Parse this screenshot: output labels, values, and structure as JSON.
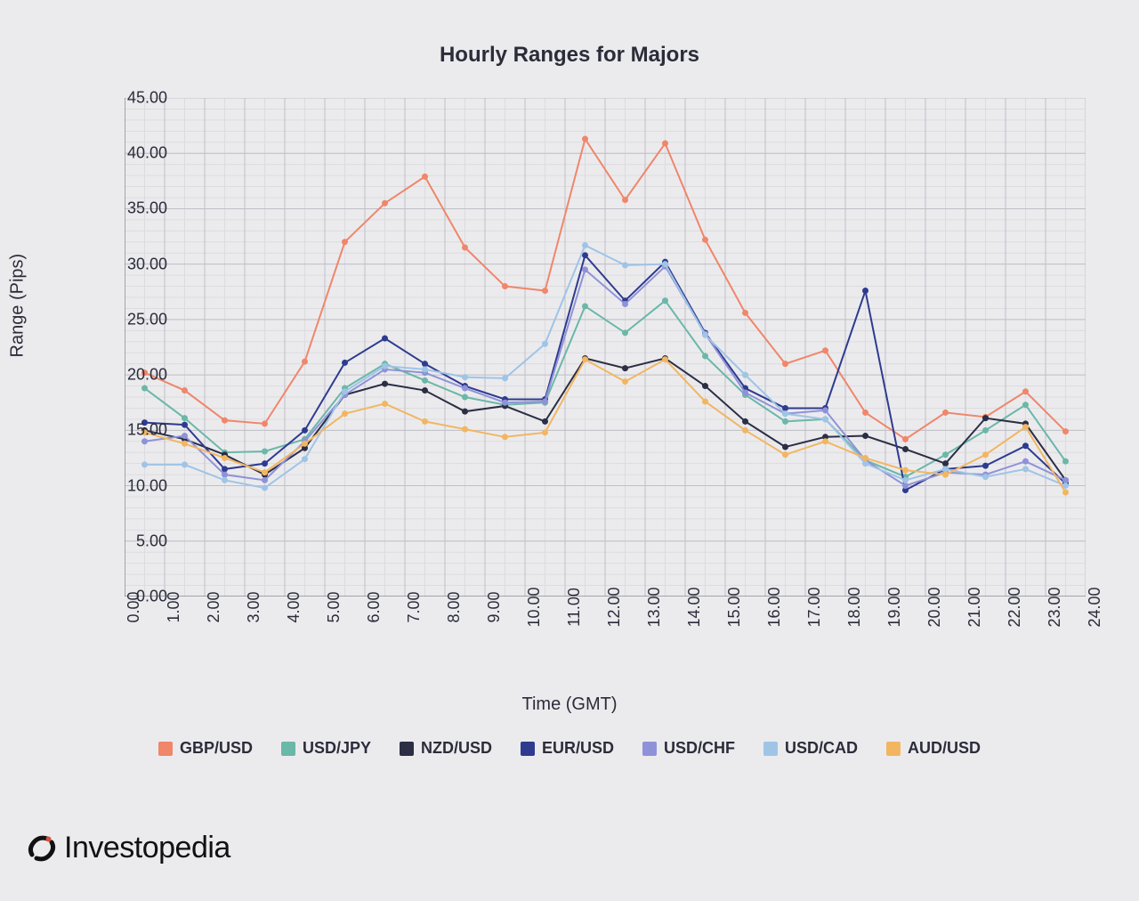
{
  "title": "Hourly Ranges for Majors",
  "x_label": "Time (GMT)",
  "y_label": "Range (Pips)",
  "brand": "Investopedia",
  "chart": {
    "type": "line",
    "background_color": "#ebebee",
    "grid_minor_color": "#dcdce0",
    "grid_major_color": "#bfbfc7",
    "axis_color": "#8a8a94",
    "marker_radius": 3.5,
    "line_width": 2,
    "xlim": [
      0,
      24
    ],
    "ylim": [
      0,
      45
    ],
    "x_ticks": [
      "0.00",
      "1.00",
      "2.00",
      "3.00",
      "4.00",
      "5.00",
      "6.00",
      "7.00",
      "8.00",
      "9.00",
      "10.00",
      "11.00",
      "12.00",
      "13.00",
      "14.00",
      "15.00",
      "16.00",
      "17.00",
      "18.00",
      "19.00",
      "20.00",
      "21.00",
      "22.00",
      "23.00",
      "24.00"
    ],
    "y_ticks": [
      "0.00",
      "5.00",
      "10.00",
      "15.00",
      "20.00",
      "25.00",
      "30.00",
      "35.00",
      "40.00",
      "45.00"
    ],
    "x_values": [
      0.5,
      1.5,
      2.5,
      3.5,
      4.5,
      5.5,
      6.5,
      7.5,
      8.5,
      9.5,
      10.5,
      11.5,
      12.5,
      13.5,
      14.5,
      15.5,
      16.5,
      17.5,
      18.5,
      19.5,
      20.5,
      21.5,
      22.5,
      23.5
    ],
    "series": [
      {
        "label": "GBP/USD",
        "color": "#f0866a",
        "data": [
          20.2,
          18.6,
          15.9,
          15.6,
          21.2,
          32.0,
          35.5,
          37.9,
          31.5,
          28.0,
          27.6,
          41.3,
          35.8,
          40.9,
          32.2,
          25.6,
          21.0,
          22.2,
          16.6,
          14.2,
          16.6,
          16.2,
          18.5,
          14.9
        ]
      },
      {
        "label": "USD/JPY",
        "color": "#6bb7a8",
        "data": [
          18.8,
          16.1,
          13.0,
          13.1,
          14.2,
          18.8,
          21.0,
          19.5,
          18.0,
          17.3,
          17.5,
          26.2,
          23.8,
          26.7,
          21.7,
          18.2,
          15.8,
          16.0,
          12.3,
          10.8,
          12.8,
          15.0,
          17.3,
          12.2
        ]
      },
      {
        "label": "NZD/USD",
        "color": "#2b2e44",
        "data": [
          15.0,
          14.2,
          12.8,
          11.0,
          13.4,
          18.2,
          19.2,
          18.6,
          16.7,
          17.2,
          15.8,
          21.5,
          20.6,
          21.5,
          19.0,
          15.8,
          13.5,
          14.4,
          14.5,
          13.3,
          12.0,
          16.1,
          15.6,
          10.5
        ]
      },
      {
        "label": "EUR/USD",
        "color": "#2e3b8f",
        "data": [
          15.7,
          15.5,
          11.5,
          12.0,
          15.0,
          21.1,
          23.3,
          21.0,
          19.0,
          17.8,
          17.8,
          30.8,
          26.7,
          30.2,
          23.8,
          18.8,
          17.0,
          17.0,
          27.6,
          9.6,
          11.5,
          11.8,
          13.6,
          10.2
        ]
      },
      {
        "label": "USD/CHF",
        "color": "#8f92d8",
        "data": [
          14.0,
          14.5,
          11.0,
          10.5,
          14.0,
          18.2,
          20.5,
          20.2,
          18.8,
          17.5,
          17.6,
          29.5,
          26.4,
          29.8,
          23.7,
          18.4,
          16.5,
          16.8,
          12.3,
          10.0,
          11.2,
          11.0,
          12.2,
          10.5
        ]
      },
      {
        "label": "USD/CAD",
        "color": "#9fc4e6",
        "data": [
          11.9,
          11.9,
          10.5,
          9.8,
          12.4,
          18.5,
          20.8,
          20.5,
          19.8,
          19.7,
          22.8,
          31.7,
          29.9,
          30.0,
          23.6,
          20.0,
          16.5,
          16.0,
          12.0,
          10.5,
          11.5,
          10.8,
          11.5,
          10.0
        ]
      },
      {
        "label": "AUD/USD",
        "color": "#f2b661",
        "data": [
          14.8,
          13.8,
          12.5,
          11.2,
          13.8,
          16.5,
          17.4,
          15.8,
          15.1,
          14.4,
          14.8,
          21.4,
          19.4,
          21.4,
          17.6,
          15.0,
          12.8,
          14.0,
          12.5,
          11.4,
          11.0,
          12.8,
          15.3,
          9.4
        ]
      }
    ]
  }
}
